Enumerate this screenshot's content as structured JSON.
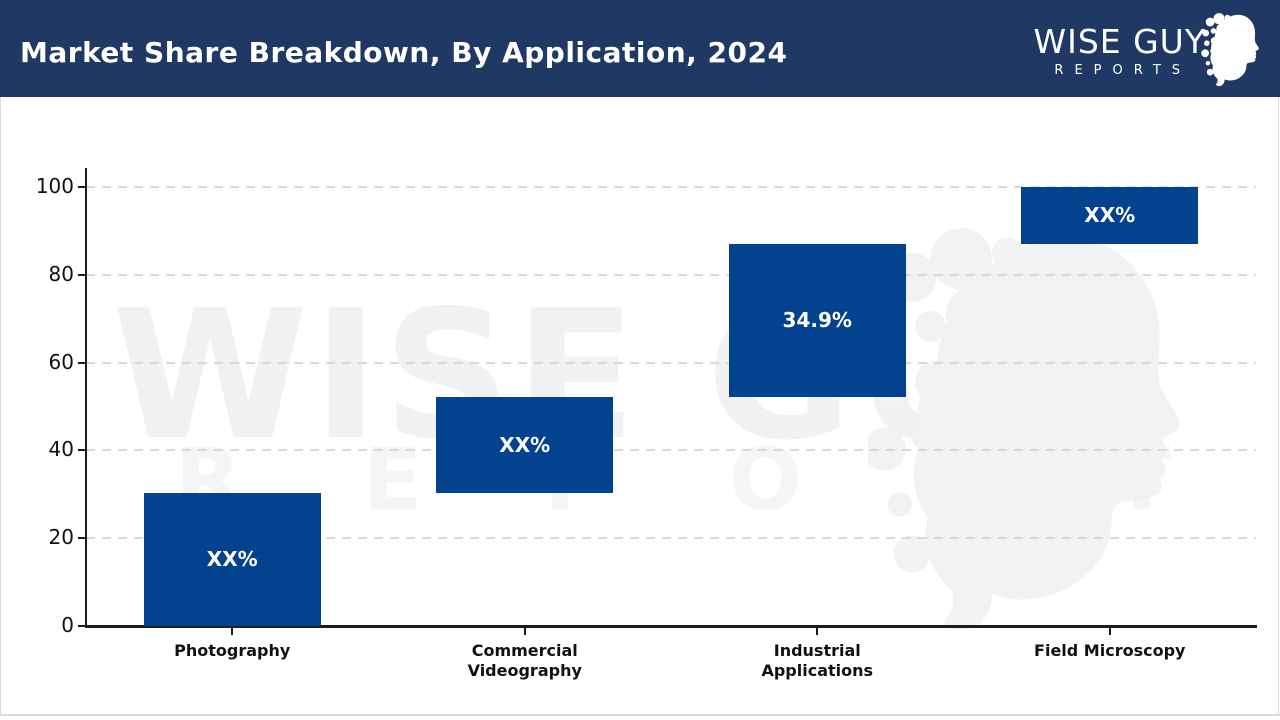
{
  "header": {
    "title": "Market Share Breakdown, By Application, 2024",
    "logo": {
      "line1": "WISE GUY",
      "line2": "REPORTS"
    }
  },
  "watermark": {
    "line1": "WISE GUY",
    "line2": "REPORTS"
  },
  "colors": {
    "header_bg": "#203864",
    "bar": "#03428e",
    "bar_label": "#ffffff",
    "grid": "#d8d8d8",
    "axis": "#1c1c1c",
    "watermark": "#f0f1f3"
  },
  "chart_data": {
    "type": "bar",
    "subtype": "waterfall",
    "title": "Market Share Breakdown, By Application, 2024",
    "categories": [
      "Photography",
      "Commercial\nVideography",
      "Industrial\nApplications",
      "Field Microscopy"
    ],
    "segments": [
      [
        0,
        30.3
      ],
      [
        30.3,
        52.2
      ],
      [
        52.2,
        87.1
      ],
      [
        87.1,
        100
      ]
    ],
    "values": [
      30.3,
      21.9,
      34.9,
      12.9
    ],
    "bar_labels": [
      "XX%",
      "XX%",
      "34.9%",
      "XX%"
    ],
    "xlabel": "",
    "ylabel": "",
    "ylim": [
      0,
      100
    ],
    "yticks": [
      0,
      20,
      40,
      60,
      80,
      100
    ],
    "grid": "horizontal-dashed",
    "legend": "none"
  }
}
